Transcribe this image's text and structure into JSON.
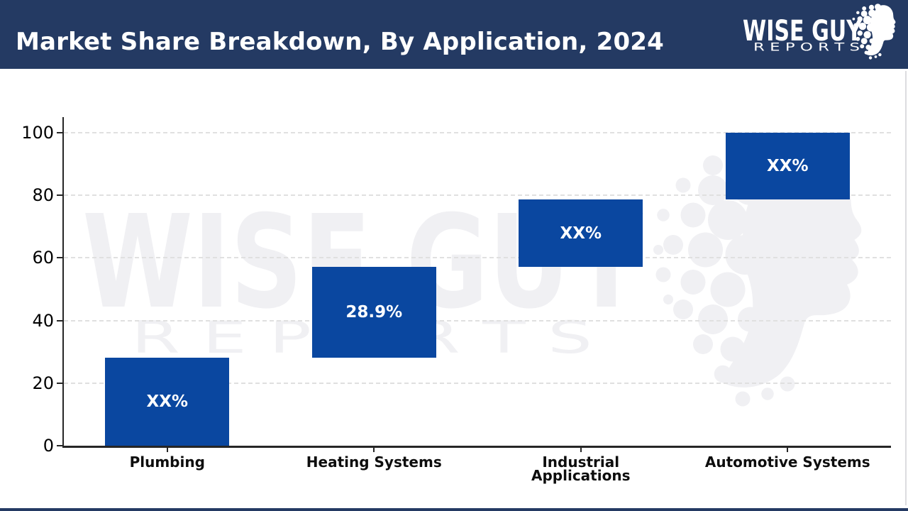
{
  "header": {
    "title": "Market Share Breakdown, By Application, 2024",
    "logo": {
      "line1": "WISE GUY",
      "line2": "R E P O R T S"
    }
  },
  "watermark": {
    "line1": "WISE GUY",
    "line2": "R E P O R T S"
  },
  "colors": {
    "header_bg": "#243a63",
    "bar": "#0a47a0",
    "axis": "#262626",
    "grid": "#e0e0e0",
    "bar_label": "#ffffff",
    "tick_label": "#000000",
    "watermark": "#f0f0f3"
  },
  "chart_data": {
    "type": "bar",
    "subtype": "waterfall",
    "title": "Market Share Breakdown, By Application, 2024",
    "categories": [
      "Plumbing",
      "Heating Systems",
      "Industrial Applications",
      "Automotive Systems"
    ],
    "categories_display": [
      [
        "Plumbing"
      ],
      [
        "Heating Systems"
      ],
      [
        "Industrial",
        "Applications"
      ],
      [
        "Automotive Systems"
      ]
    ],
    "series": [
      {
        "name": "Market share (%)",
        "starts": [
          0,
          28.2,
          57.1,
          78.6
        ],
        "ends": [
          28.2,
          57.1,
          78.6,
          100
        ],
        "labels": [
          "XX%",
          "28.9%",
          "XX%",
          "XX%"
        ]
      }
    ],
    "xlabel": "",
    "ylabel": "",
    "ylim": [
      0,
      105
    ],
    "yticks": [
      0,
      20,
      40,
      60,
      80,
      100
    ],
    "grid": "horizontal-dashed",
    "legend": "none",
    "bar_width_fraction": 0.6
  }
}
